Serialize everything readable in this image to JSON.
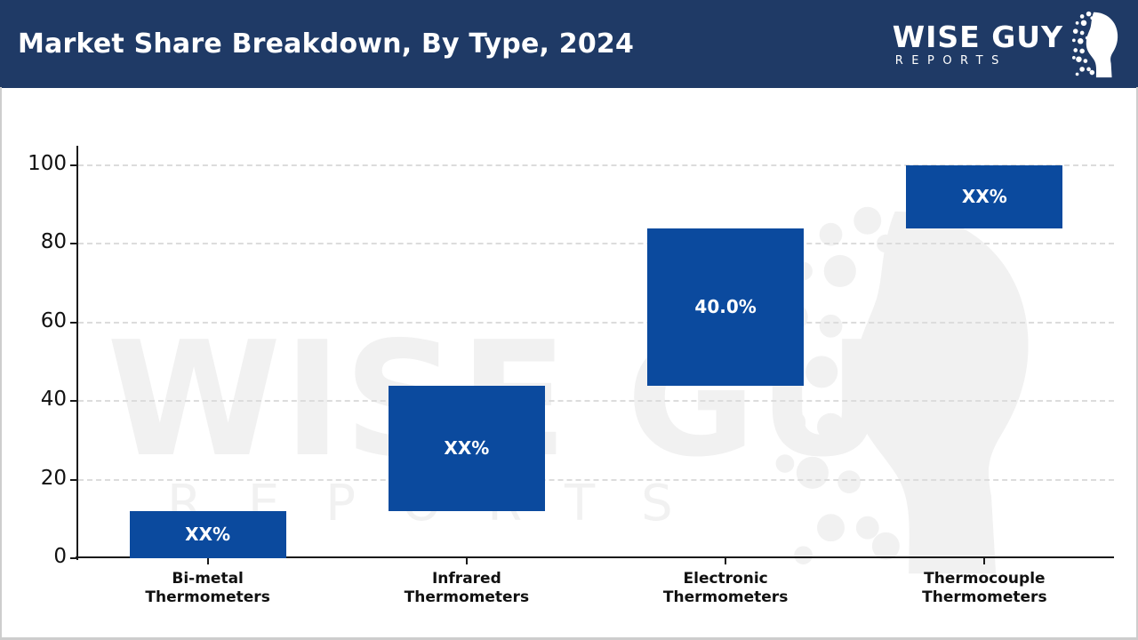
{
  "header": {
    "title": "Market Share Breakdown, By Type, 2024",
    "logo": {
      "line1": "WISE GUY",
      "line2": "REPORTS"
    }
  },
  "watermark": {
    "line1": "WISE GU",
    "line2": "REPORTS"
  },
  "colors": {
    "header_bg": "#1f3a66",
    "bar_blue": "#0b4a9e",
    "grid_gray": "#dcdcdc",
    "axis_black": "#1a1a1a",
    "watermark_gray": "#f1f1f1",
    "bar_label_white": "#ffffff"
  },
  "chart_data": {
    "type": "bar",
    "subtype": "waterfall-floating-segments",
    "title": "Market Share Breakdown, By Type, 2024",
    "xlabel": "",
    "ylabel": "",
    "categories": [
      "Bi-metal Thermometers",
      "Infrared Thermometers",
      "Electronic Thermometers",
      "Thermocouple Thermometers"
    ],
    "segments": [
      {
        "category": "Bi-metal Thermometers",
        "start": 0,
        "end": 12,
        "value": 12,
        "label": "XX%"
      },
      {
        "category": "Infrared Thermometers",
        "start": 12,
        "end": 44,
        "value": 32,
        "label": "XX%"
      },
      {
        "category": "Electronic Thermometers",
        "start": 44,
        "end": 84,
        "value": 40,
        "label": "40.0%"
      },
      {
        "category": "Thermocouple Thermometers",
        "start": 84,
        "end": 100,
        "value": 16,
        "label": "XX%"
      }
    ],
    "yticks": [
      0,
      20,
      40,
      60,
      80,
      100
    ],
    "ylim": [
      0,
      105
    ],
    "grid": "dashed horizontal",
    "legend": "none"
  }
}
